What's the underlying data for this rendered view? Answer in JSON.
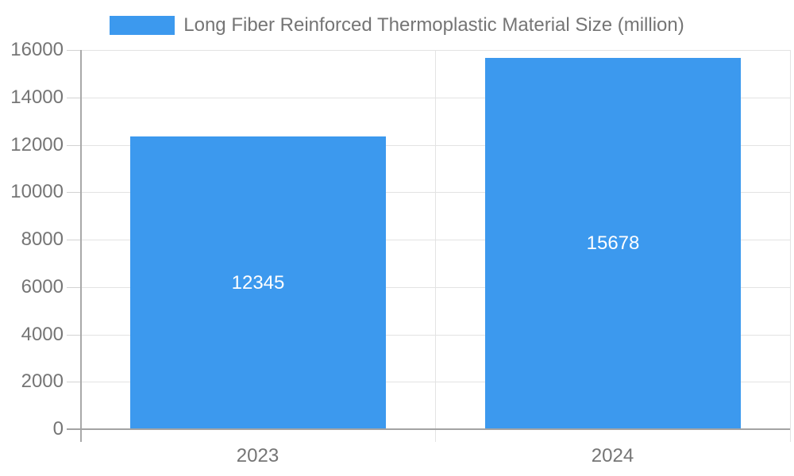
{
  "legend": {
    "label": "Long Fiber Reinforced Thermoplastic Material Size (million)"
  },
  "chart_data": {
    "type": "bar",
    "title": "",
    "xlabel": "",
    "ylabel": "",
    "categories": [
      "2023",
      "2024"
    ],
    "series": [
      {
        "name": "Long Fiber Reinforced Thermoplastic Material Size (million)",
        "values": [
          12345,
          15678
        ]
      }
    ],
    "bar_value_labels": [
      "12345",
      "15678"
    ],
    "ylim": [
      0,
      16000
    ],
    "yticks": [
      0,
      2000,
      4000,
      6000,
      8000,
      10000,
      12000,
      14000,
      16000
    ],
    "grid": true,
    "legend_position": "top-center",
    "colors": {
      "bar": "#3C99EE",
      "axis_text": "#757575",
      "bar_value_text": "#FFFFFF",
      "gridline": "#E3E3E3",
      "tick": "#D2D2D2",
      "y_axis_line": "#A9A9A9",
      "x_axis_line": "#A3A3A3",
      "background": "#FFFFFF"
    }
  }
}
